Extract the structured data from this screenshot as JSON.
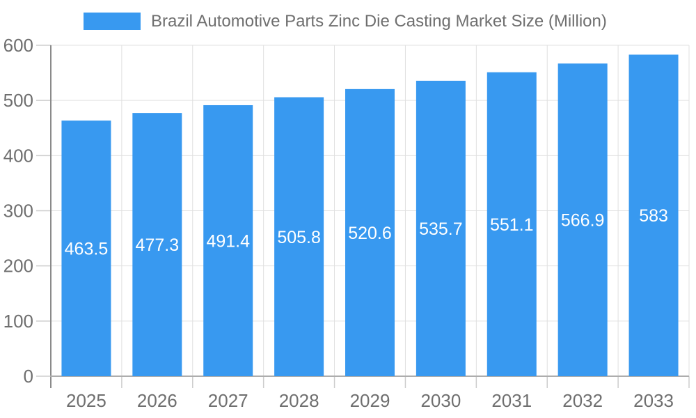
{
  "legend": {
    "position": "top-left"
  },
  "colors": {
    "background": "#FFFFFF",
    "bar": "#3899F0",
    "bar_label_text": "#FFFFFF",
    "axis_text": "#6F6F6F",
    "legend_text": "#6F6F6F",
    "grid_line": "#E0E0E0",
    "tick_line": "#CDCDCD",
    "y_axis_line": "#8A8A8A",
    "x_axis_line": "#ADADAD"
  },
  "chart_data": {
    "type": "bar",
    "title": "Brazil Automotive Parts Zinc Die Casting Market Size (Million)",
    "categories": [
      "2025",
      "2026",
      "2027",
      "2028",
      "2029",
      "2030",
      "2031",
      "2032",
      "2033"
    ],
    "series": [
      {
        "name": "Brazil Automotive Parts Zinc Die Casting Market Size (Million)",
        "values": [
          463.5,
          477.3,
          491.4,
          505.8,
          520.6,
          535.7,
          551.1,
          566.9,
          583
        ]
      }
    ],
    "bar_value_labels": [
      "463.5",
      "477.3",
      "491.4",
      "505.8",
      "520.6",
      "535.7",
      "551.1",
      "566.9",
      "583"
    ],
    "xlabel": "",
    "ylabel": "",
    "ylim": [
      0,
      600
    ],
    "ytick_step": 100,
    "ytick_labels": [
      "0",
      "100",
      "200",
      "300",
      "400",
      "500",
      "600"
    ],
    "grid": "both",
    "value_label_position": "inside-middle",
    "legend_position": "top-left"
  }
}
